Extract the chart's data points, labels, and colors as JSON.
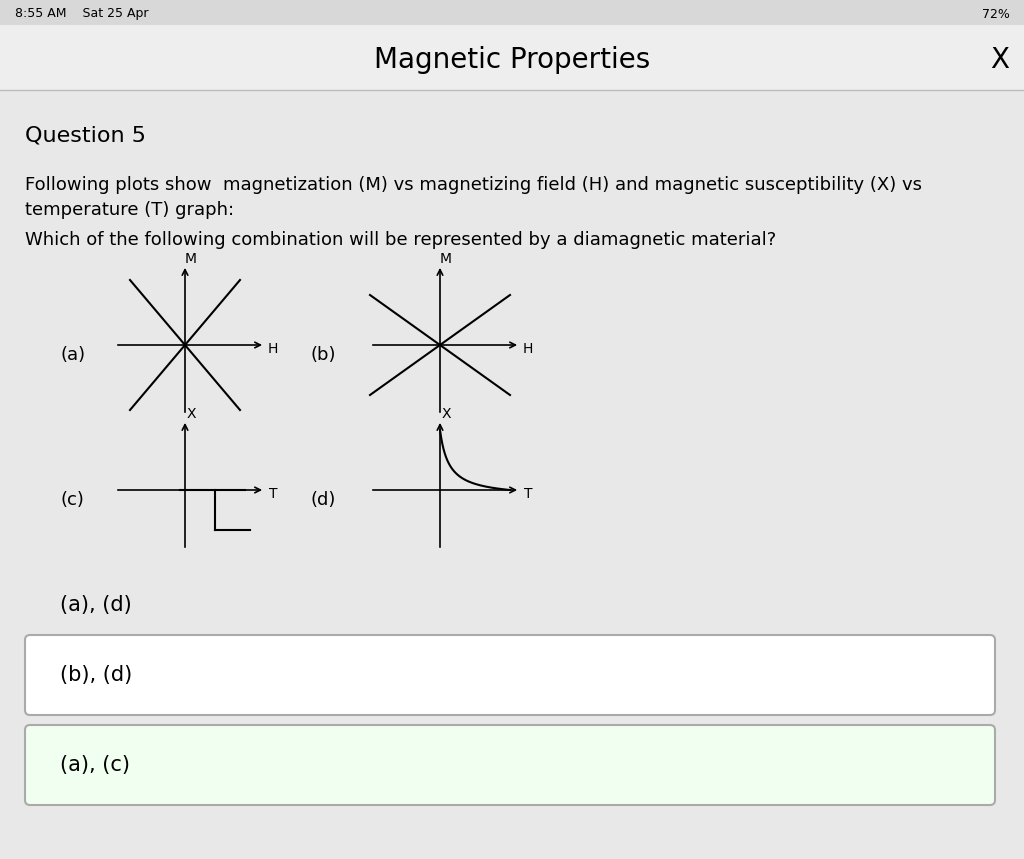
{
  "title": "Magnetic Properties",
  "question_num": "Question 5",
  "desc1": "Following plots show  magnetization (M) vs magnetizing field (H) and magnetic susceptibility (X) vs",
  "desc2": "temperature (T) graph:",
  "desc3": "Which of the following combination will be represented by a diamagnetic material?",
  "bg_color": "#e8e8e8",
  "content_bg": "#e8e8e8",
  "answer_options": [
    "(a), (d)",
    "(b), (d)",
    "(a), (c)"
  ],
  "status_left": "8:55 AM    Sat 25 Apr",
  "status_right": "72%"
}
